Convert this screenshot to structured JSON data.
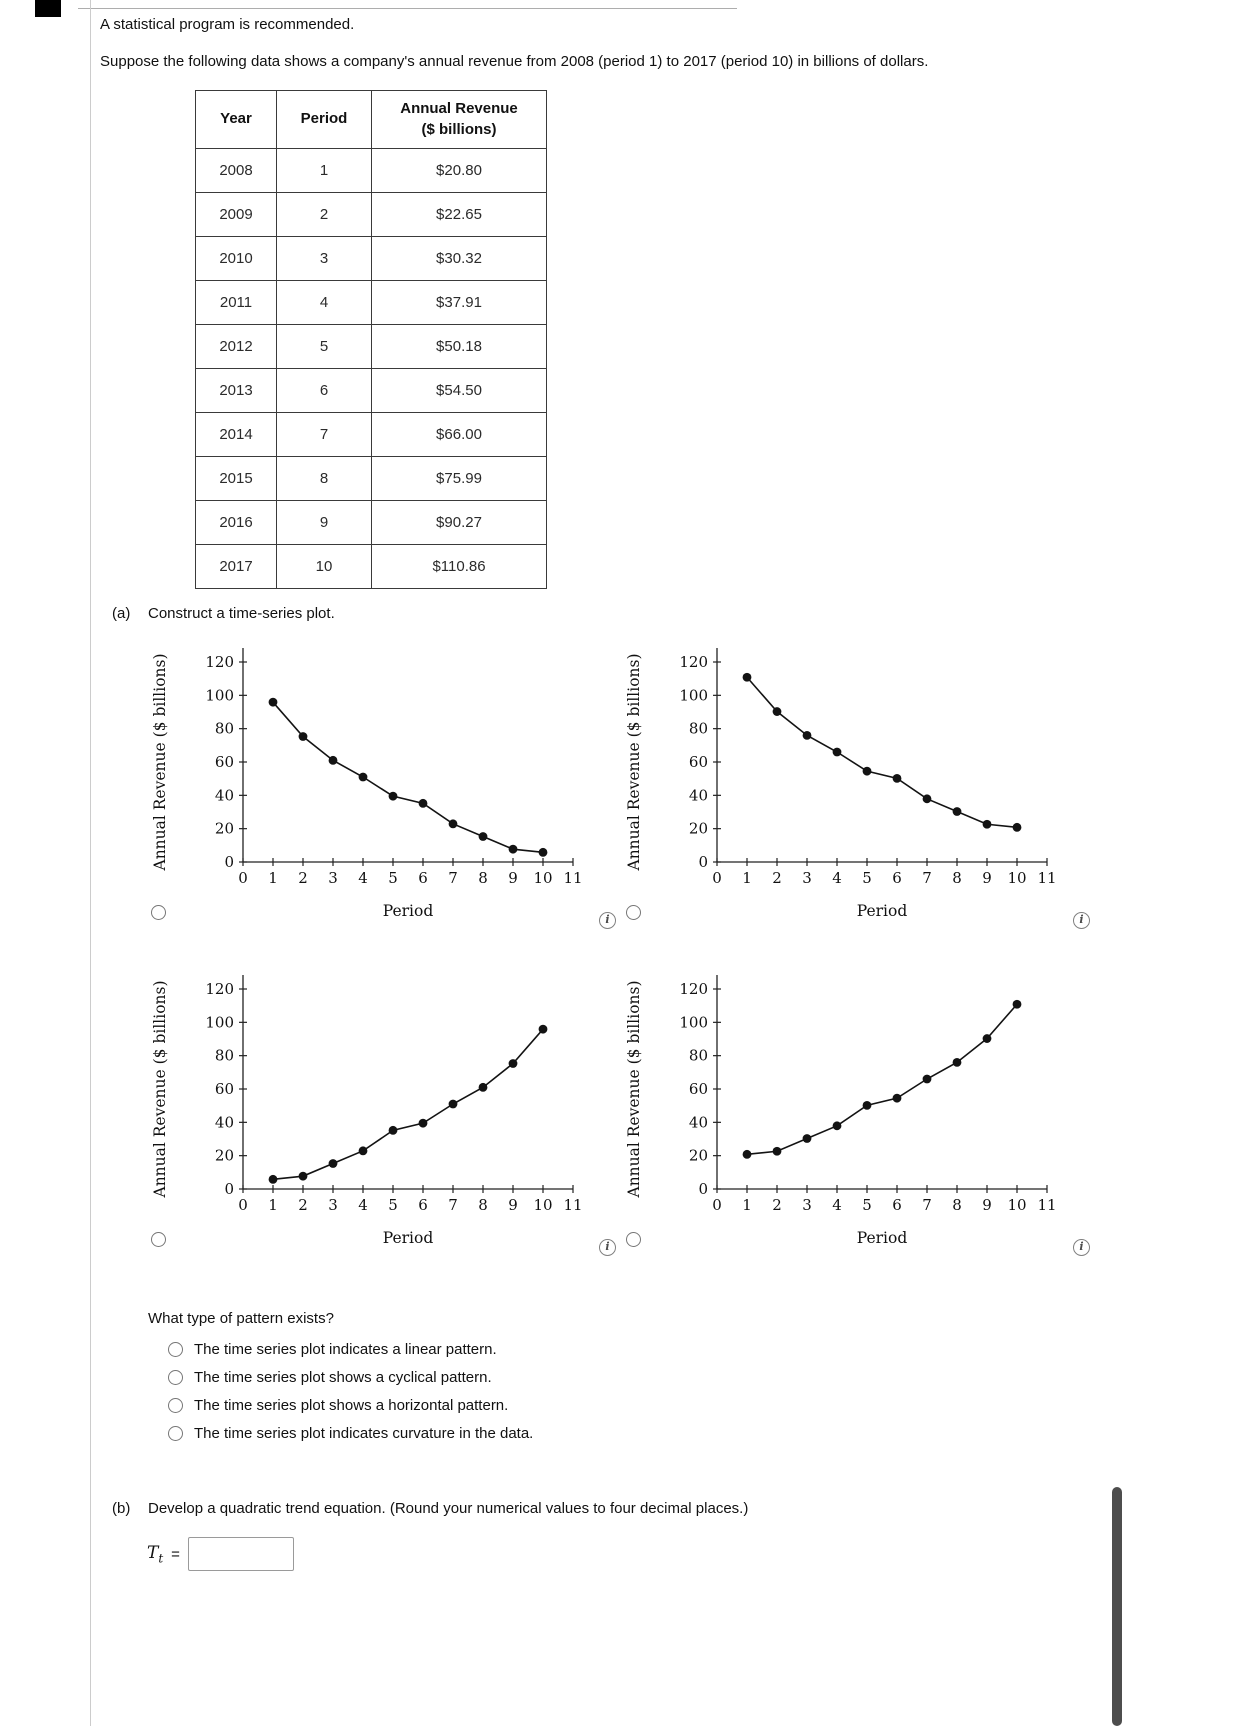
{
  "header": {
    "instruction": "A statistical program is recommended.",
    "intro": "Suppose the following data shows a company's annual revenue from 2008 (period 1) to 2017 (period 10) in billions of dollars."
  },
  "table": {
    "headers": {
      "year": "Year",
      "period": "Period",
      "revenue_line1": "Annual Revenue",
      "revenue_line2": "($ billions)"
    },
    "rows": [
      [
        "2008",
        "1",
        "$20.80"
      ],
      [
        "2009",
        "2",
        "$22.65"
      ],
      [
        "2010",
        "3",
        "$30.32"
      ],
      [
        "2011",
        "4",
        "$37.91"
      ],
      [
        "2012",
        "5",
        "$50.18"
      ],
      [
        "2013",
        "6",
        "$54.50"
      ],
      [
        "2014",
        "7",
        "$66.00"
      ],
      [
        "2015",
        "8",
        "$75.99"
      ],
      [
        "2016",
        "9",
        "$90.27"
      ],
      [
        "2017",
        "10",
        "$110.86"
      ]
    ]
  },
  "part_a": {
    "label": "(a)",
    "text": "Construct a time-series plot."
  },
  "chart_data": [
    {
      "type": "line",
      "position": "top-left",
      "x": [
        1,
        2,
        3,
        4,
        5,
        6,
        7,
        8,
        9,
        10
      ],
      "values": [
        95.9,
        75.3,
        61.0,
        51.0,
        39.5,
        35.2,
        22.9,
        15.3,
        7.7,
        5.8
      ],
      "title": "",
      "xlabel": "Period",
      "ylabel": "Annual Revenue ($ billions)",
      "xlim": [
        0,
        11
      ],
      "ylim": [
        0,
        120
      ],
      "xticks": [
        0,
        1,
        2,
        3,
        4,
        5,
        6,
        7,
        8,
        9,
        10,
        11
      ],
      "yticks": [
        0,
        20,
        40,
        60,
        80,
        100,
        120
      ],
      "grid": false,
      "legend": false
    },
    {
      "type": "line",
      "position": "top-right",
      "x": [
        1,
        2,
        3,
        4,
        5,
        6,
        7,
        8,
        9,
        10
      ],
      "values": [
        110.86,
        90.27,
        75.99,
        66.0,
        54.5,
        50.18,
        37.91,
        30.32,
        22.65,
        20.8
      ],
      "title": "",
      "xlabel": "Period",
      "ylabel": "Annual Revenue ($ billions)",
      "xlim": [
        0,
        11
      ],
      "ylim": [
        0,
        120
      ],
      "xticks": [
        0,
        1,
        2,
        3,
        4,
        5,
        6,
        7,
        8,
        9,
        10,
        11
      ],
      "yticks": [
        0,
        20,
        40,
        60,
        80,
        100,
        120
      ],
      "grid": false,
      "legend": false
    },
    {
      "type": "line",
      "position": "bottom-left",
      "x": [
        1,
        2,
        3,
        4,
        5,
        6,
        7,
        8,
        9,
        10
      ],
      "values": [
        5.8,
        7.7,
        15.3,
        22.9,
        35.2,
        39.5,
        51.0,
        61.0,
        75.3,
        95.9
      ],
      "title": "",
      "xlabel": "Period",
      "ylabel": "Annual Revenue ($ billions)",
      "xlim": [
        0,
        11
      ],
      "ylim": [
        0,
        120
      ],
      "xticks": [
        0,
        1,
        2,
        3,
        4,
        5,
        6,
        7,
        8,
        9,
        10,
        11
      ],
      "yticks": [
        0,
        20,
        40,
        60,
        80,
        100,
        120
      ],
      "grid": false,
      "legend": false
    },
    {
      "type": "line",
      "position": "bottom-right",
      "x": [
        1,
        2,
        3,
        4,
        5,
        6,
        7,
        8,
        9,
        10
      ],
      "values": [
        20.8,
        22.65,
        30.32,
        37.91,
        50.18,
        54.5,
        66.0,
        75.99,
        90.27,
        110.86
      ],
      "title": "",
      "xlabel": "Period",
      "ylabel": "Annual Revenue ($ billions)",
      "xlim": [
        0,
        11
      ],
      "ylim": [
        0,
        120
      ],
      "xticks": [
        0,
        1,
        2,
        3,
        4,
        5,
        6,
        7,
        8,
        9,
        10,
        11
      ],
      "yticks": [
        0,
        20,
        40,
        60,
        80,
        100,
        120
      ],
      "grid": false,
      "legend": false
    }
  ],
  "pattern_question": {
    "prompt": "What type of pattern exists?",
    "options": [
      "The time series plot indicates a linear pattern.",
      "The time series plot shows a cyclical pattern.",
      "The time series plot shows a horizontal pattern.",
      "The time series plot indicates curvature in the data."
    ]
  },
  "part_b": {
    "label": "(b)",
    "text": "Develop a quadratic trend equation. (Round your numerical values to four decimal places.)",
    "equation_variable": "T",
    "equation_subscript": "t",
    "equals_sign": "=",
    "answer_value": ""
  },
  "icons": {
    "info_glyph": "i"
  }
}
